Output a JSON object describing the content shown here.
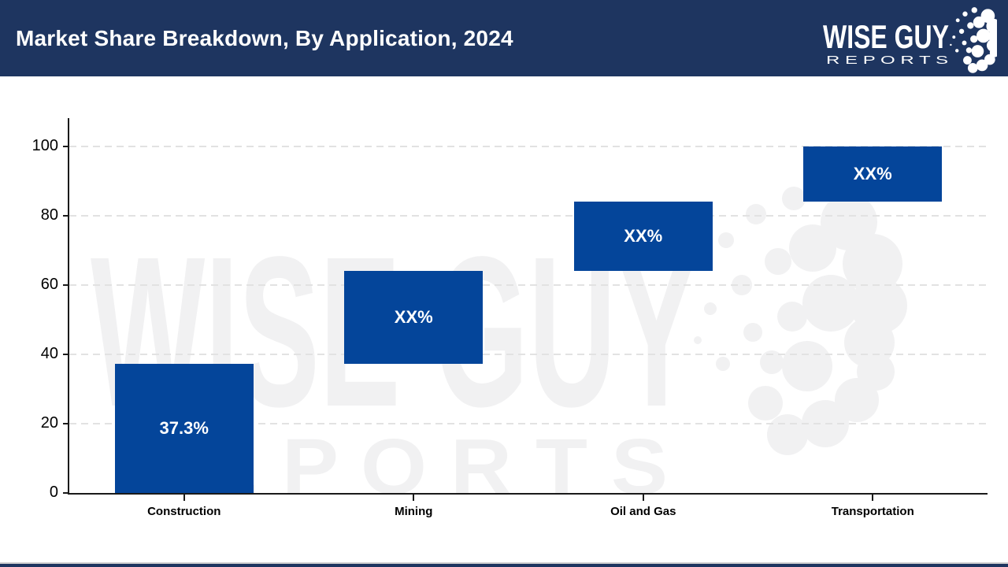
{
  "header": {
    "title": "Market Share Breakdown, By Application, 2024",
    "background_color": "#1e3560",
    "text_color": "#ffffff",
    "brand": {
      "line1": "WISE GUY",
      "line2": "R E P O R T S"
    }
  },
  "watermark": {
    "line1": "WISE GUY",
    "line2": "R E P O R T S",
    "color": "#f1f1f2"
  },
  "chart_data": {
    "type": "bar",
    "subtype": "waterfall",
    "title": "Market Share Breakdown, By Application, 2024",
    "categories": [
      "Construction",
      "Mining",
      "Oil and Gas",
      "Transportation"
    ],
    "segments": [
      {
        "category": "Construction",
        "start": 0,
        "end": 37.3,
        "label": "37.3%"
      },
      {
        "category": "Mining",
        "start": 37.3,
        "end": 64,
        "label": "XX%"
      },
      {
        "category": "Oil and Gas",
        "start": 64,
        "end": 84,
        "label": "XX%"
      },
      {
        "category": "Transportation",
        "start": 84,
        "end": 100,
        "label": "XX%"
      }
    ],
    "bar_color": "#04459a",
    "bar_label_color": "#ffffff",
    "xlabel": "",
    "ylabel": "",
    "ylim": [
      0,
      105
    ],
    "yticks": [
      0,
      20,
      40,
      60,
      80,
      100
    ],
    "grid": "horizontal-dashed",
    "legend": "none"
  }
}
